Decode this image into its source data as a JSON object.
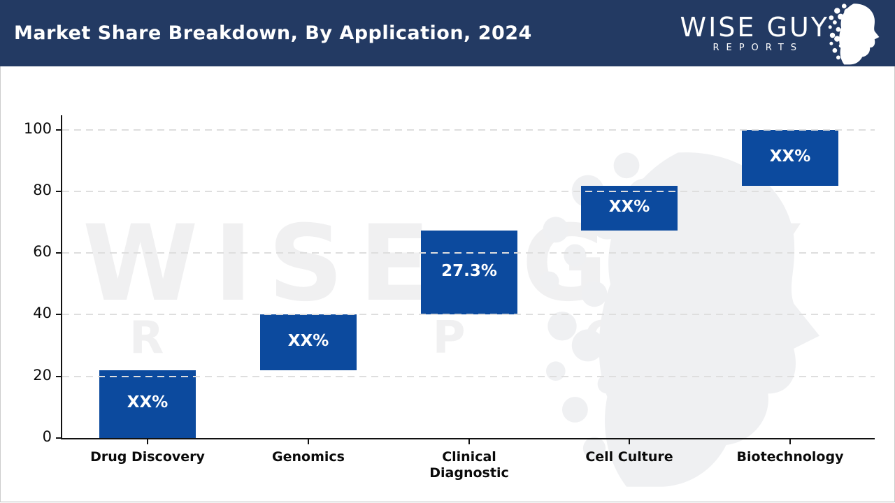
{
  "header": {
    "title": "Market Share Breakdown, By Application, 2024",
    "logo": {
      "line1": "WISE GUY",
      "line2": "REPORTS"
    }
  },
  "watermark": {
    "line1": "WISE GUY",
    "line2": "R E P O R T S",
    "head_icon": "dotted-head-profile"
  },
  "colors": {
    "header_bg": "#233a63",
    "bar": "#0c4a9e",
    "axis": "#111111",
    "grid": "#dedede",
    "watermark_text": "#f0f0f1",
    "watermark_head": "#eff0f2",
    "bar_label": "#ffffff"
  },
  "chart_data": {
    "type": "bar",
    "subtype": "floating-waterfall",
    "title": "Market Share Breakdown, By Application, 2024",
    "categories": [
      "Drug Discovery",
      "Genomics",
      "Clinical Diagnostic",
      "Cell Culture",
      "Biotechnology"
    ],
    "categories_display": [
      [
        "Drug Discovery"
      ],
      [
        "Genomics"
      ],
      [
        "Clinical",
        "Diagnostic"
      ],
      [
        "Cell Culture"
      ],
      [
        "Biotechnology"
      ]
    ],
    "segments": [
      {
        "category": "Drug Discovery",
        "start": 0,
        "end": 22,
        "label": "XX%"
      },
      {
        "category": "Genomics",
        "start": 22,
        "end": 40,
        "label": "XX%"
      },
      {
        "category": "Clinical Diagnostic",
        "start": 40,
        "end": 67.3,
        "label": "27.3%"
      },
      {
        "category": "Cell Culture",
        "start": 67.3,
        "end": 81.8,
        "label": "XX%"
      },
      {
        "category": "Biotechnology",
        "start": 81.8,
        "end": 100,
        "label": "XX%"
      }
    ],
    "ylim": [
      0,
      100
    ],
    "yticks": [
      0,
      20,
      40,
      60,
      80,
      100
    ],
    "xlabel": "",
    "ylabel": "",
    "grid": "horizontal-dashed",
    "legend": "none"
  }
}
